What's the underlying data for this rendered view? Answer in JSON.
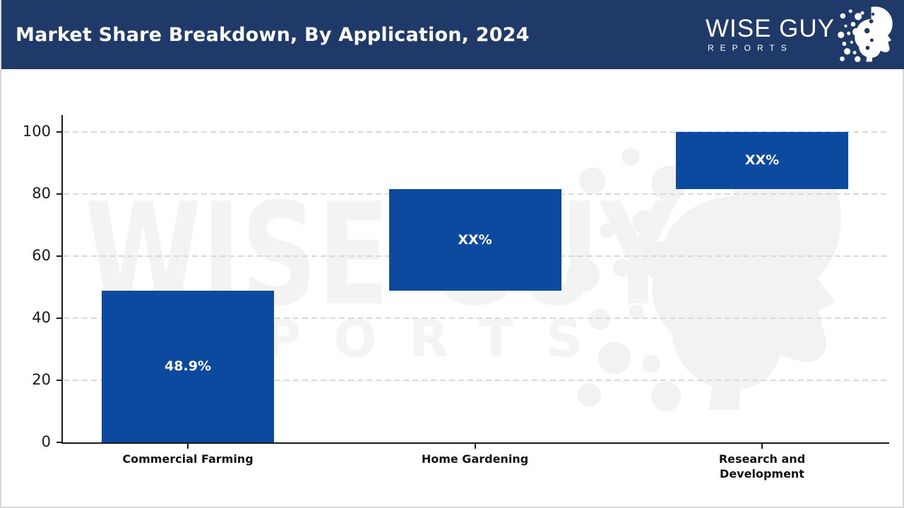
{
  "header": {
    "title": "Market Share Breakdown, By Application, 2024",
    "logo": {
      "line1": "WISE GUY",
      "line2": "REPORTS"
    }
  },
  "watermark": {
    "line1": "WISE GUY",
    "line2": "REPORTS"
  },
  "colors": {
    "header_bg": "#1f3a68",
    "bar": "#0b4a9e",
    "grid": "#d9d9d9",
    "axis": "#1a1a1a",
    "watermark": "#f2f2f2"
  },
  "chart_data": {
    "type": "bar",
    "subtype": "waterfall-floating-bars",
    "title": "Market Share Breakdown, By Application, 2024",
    "categories": [
      "Commercial Farming",
      "Home Gardening",
      "Research and Development"
    ],
    "segments": [
      {
        "category": "Commercial Farming",
        "start": 0,
        "end": 48.9,
        "label": "48.9%"
      },
      {
        "category": "Home Gardening",
        "start": 48.9,
        "end": 81.6,
        "label": "XX%"
      },
      {
        "category": "Research and Development",
        "start": 81.6,
        "end": 100,
        "label": "XX%"
      }
    ],
    "yticks": [
      0,
      20,
      40,
      60,
      80,
      100
    ],
    "ylim": [
      0,
      105
    ],
    "xlabel": "",
    "ylabel": "",
    "grid": "horizontal-dashed",
    "legend": "none",
    "bar_color": "#0b4a9e"
  }
}
